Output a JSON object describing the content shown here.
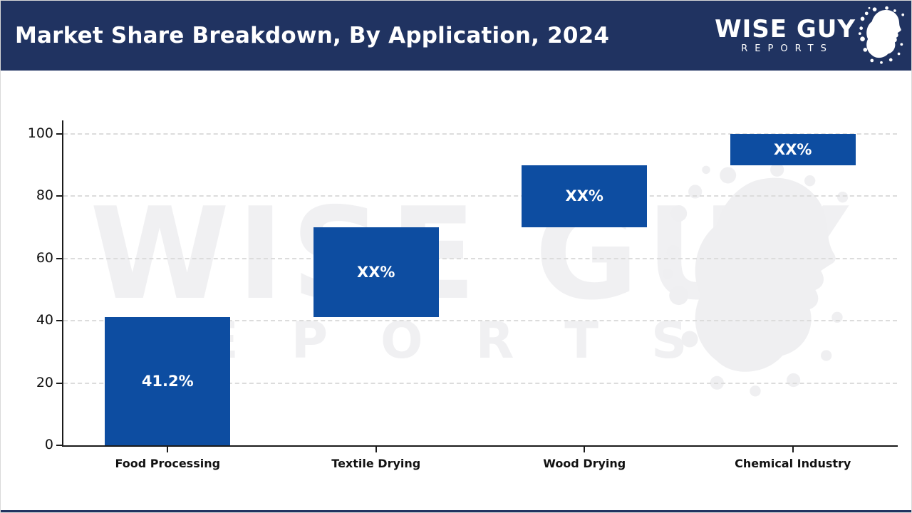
{
  "header": {
    "title": "Market Share Breakdown, By Application, 2024",
    "brand": {
      "line1": "WISE GUY",
      "line2": "REPORTS"
    }
  },
  "watermark": {
    "line1": "WISE GUY",
    "line2": "REPORTS"
  },
  "chart_data": {
    "type": "bar",
    "subtype": "waterfall (floating stacked-range bars)",
    "title": "Market Share Breakdown, By Application, 2024",
    "categories": [
      "Food Processing",
      "Textile Drying",
      "Wood Drying",
      "Chemical Industry"
    ],
    "series": [
      {
        "name": "Market Share (%)",
        "segments": [
          {
            "category": "Food Processing",
            "start": 0,
            "end": 41.2,
            "label": "41.2%"
          },
          {
            "category": "Textile Drying",
            "start": 41.2,
            "end": 70,
            "label": "XX%"
          },
          {
            "category": "Wood Drying",
            "start": 70,
            "end": 90,
            "label": "XX%"
          },
          {
            "category": "Chemical Industry",
            "start": 90,
            "end": 100,
            "label": "XX%"
          }
        ]
      }
    ],
    "ylim": [
      0,
      100
    ],
    "yticks": [
      0,
      20,
      40,
      60,
      80,
      100
    ],
    "xlabel": "",
    "ylabel": "",
    "grid": "horizontal-dashed",
    "legend": "none",
    "bar_color": "#0d4da1",
    "bar_label_color": "#ffffff"
  },
  "colors": {
    "header_bg": "#203361",
    "bar": "#0d4da1",
    "gridline": "#dcdcdc",
    "axis": "#1a1a1a",
    "watermark": "#f0f0f2"
  }
}
